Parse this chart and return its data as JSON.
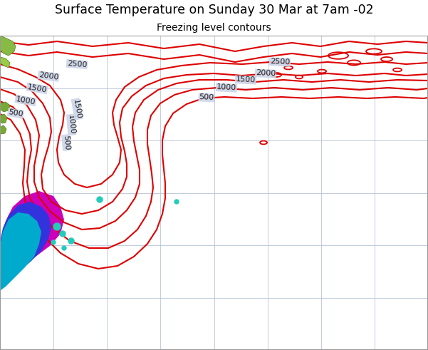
{
  "title": "Surface Temperature on Sunday 30 Mar at 7am -02",
  "subtitle": "Freezing level contours",
  "title_fontsize": 12.5,
  "subtitle_fontsize": 10,
  "map_bg": "#ccd5e8",
  "contour_color": "#dd0000",
  "label_color": "#222222",
  "grid_color": "#b8c4d8",
  "title_bg": "#ffffff",
  "border_color": "#999999"
}
